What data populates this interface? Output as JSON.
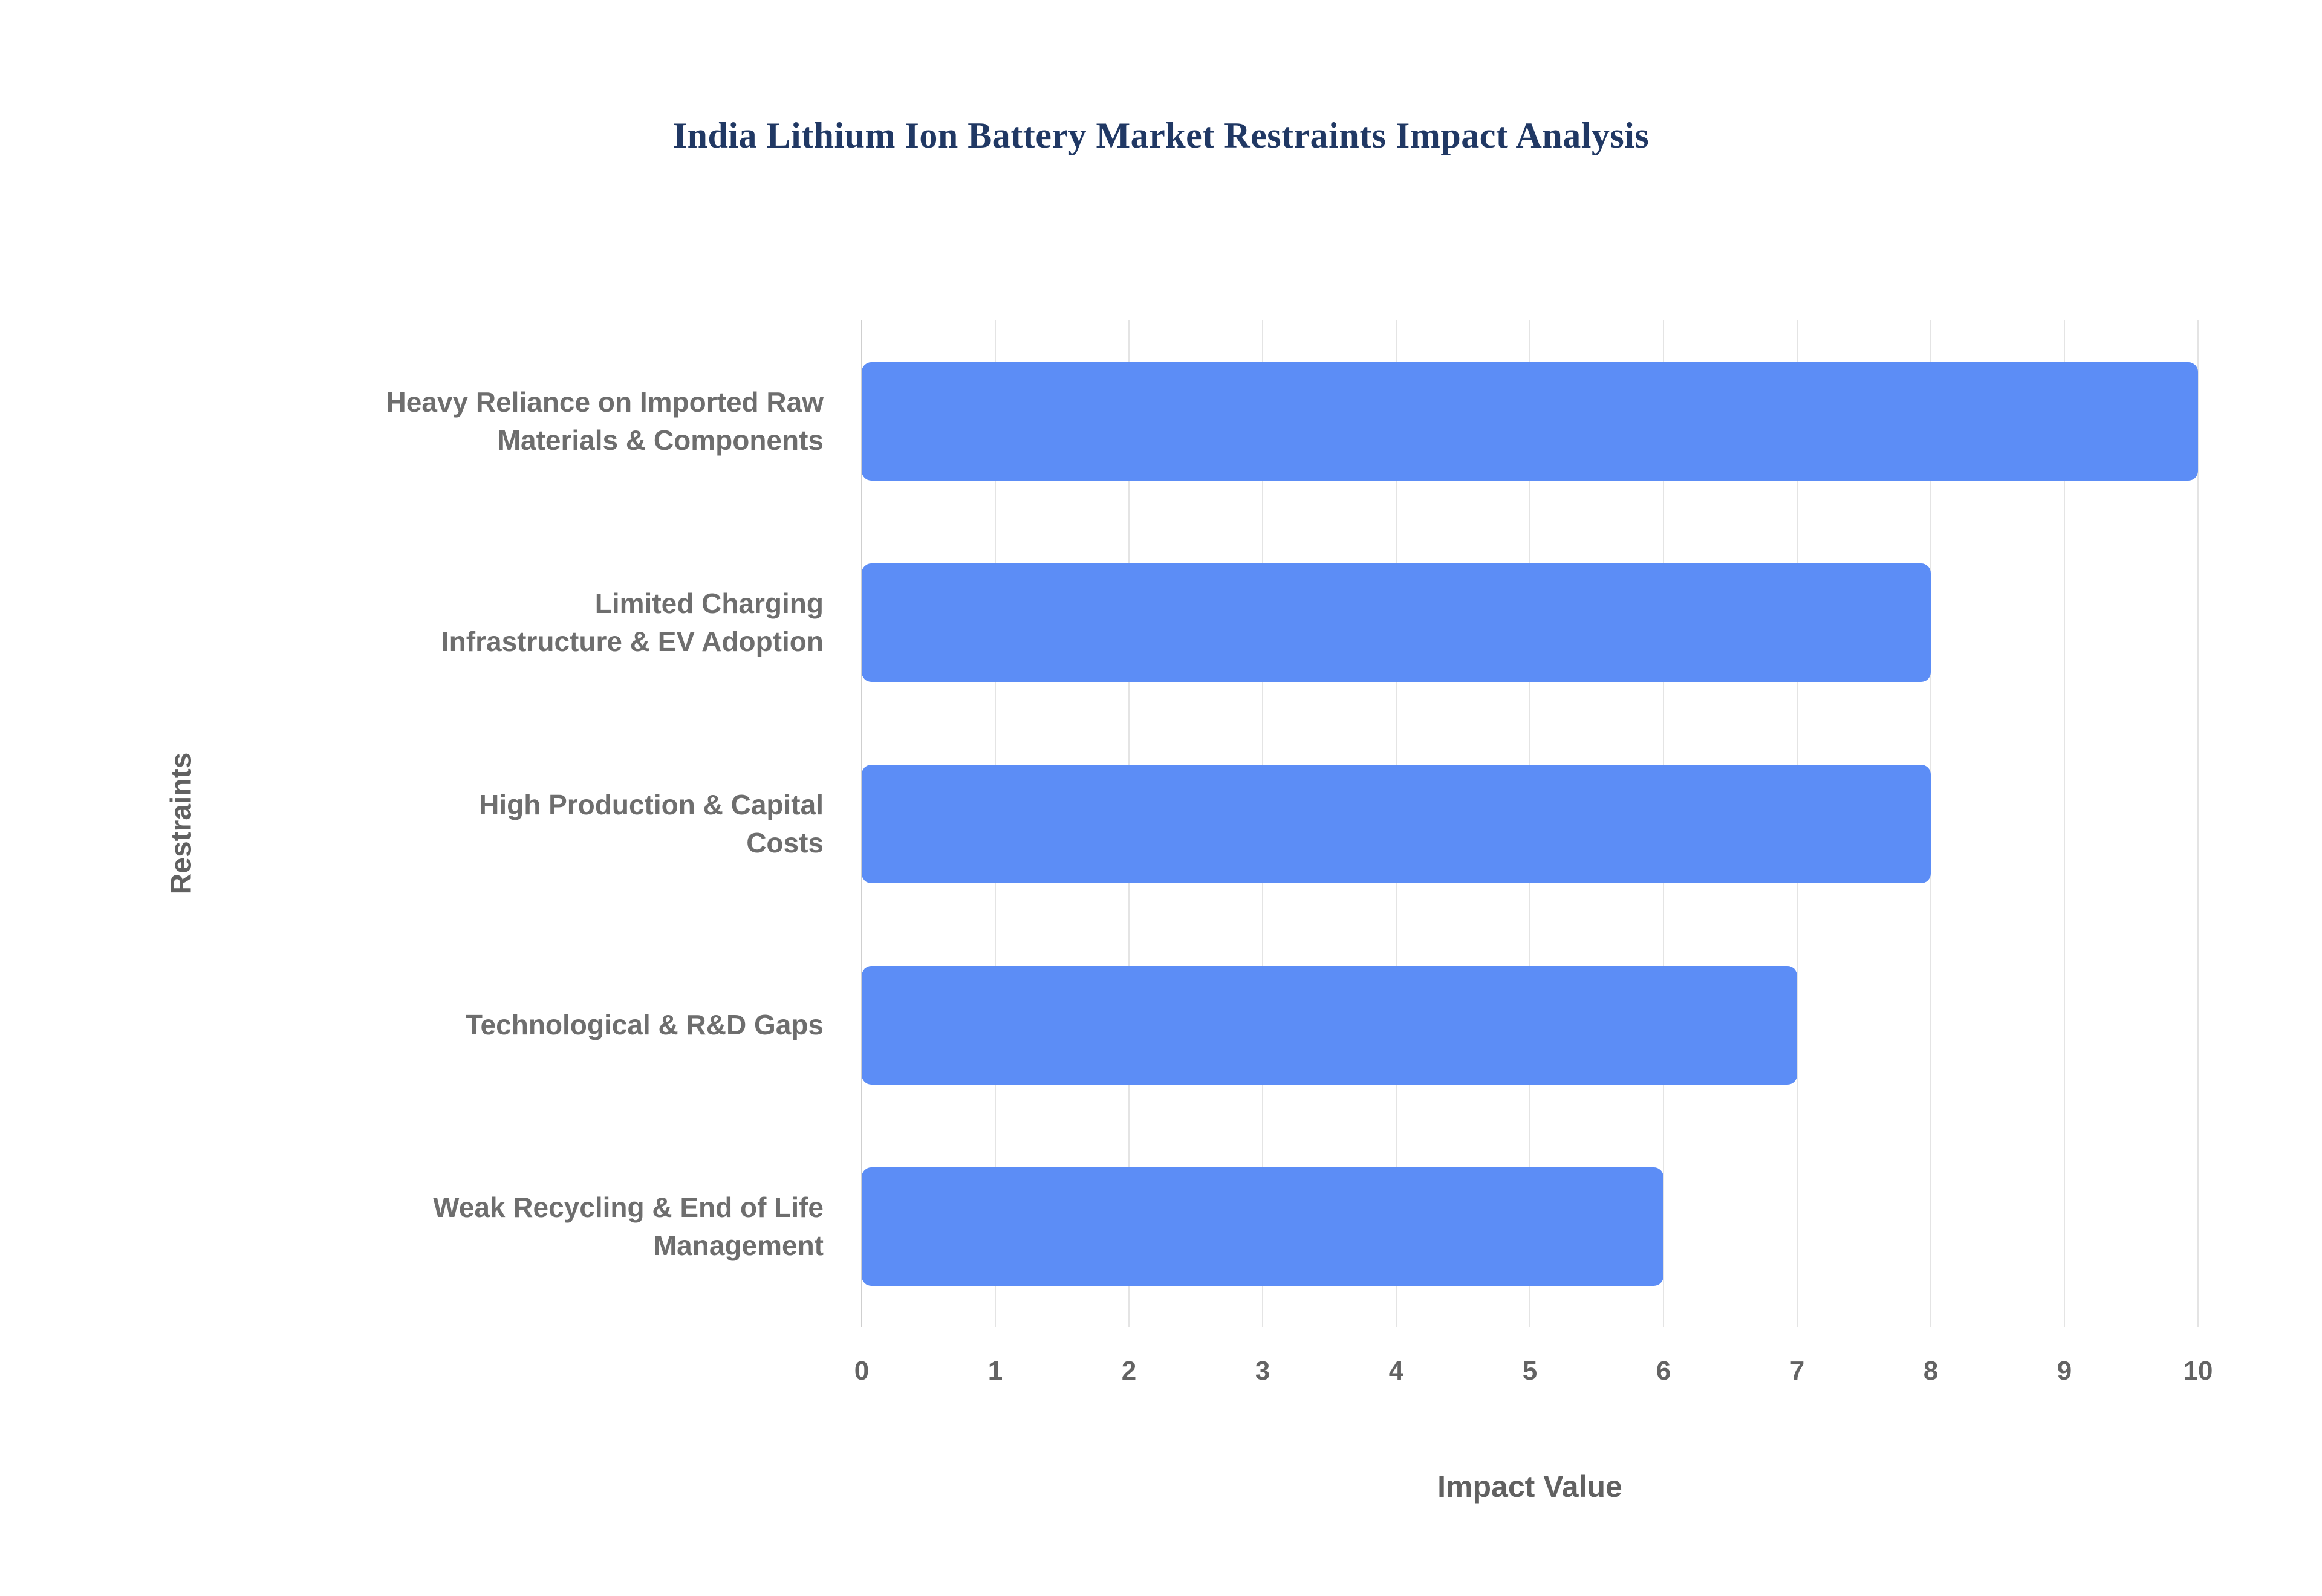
{
  "chart_data": {
    "type": "bar",
    "orientation": "horizontal",
    "title": "India Lithium Ion Battery Market Restraints Impact Analysis",
    "categories": [
      "Heavy Reliance on Imported Raw\nMaterials & Components",
      "Limited Charging\nInfrastructure & EV Adoption",
      "High Production & Capital\nCosts",
      "Technological & R&D Gaps",
      "Weak Recycling & End of Life\nManagement"
    ],
    "values": [
      10,
      8,
      8,
      7,
      6
    ],
    "xlabel": "Impact Value",
    "ylabel": "Restraints",
    "xlim": [
      0,
      10
    ],
    "x_ticks": [
      0,
      1,
      2,
      3,
      4,
      5,
      6,
      7,
      8,
      9,
      10
    ],
    "grid": "vertical",
    "legend": "none",
    "colors": {
      "bar": "#5c8df6",
      "title": "#203864",
      "axis_label": "#616161",
      "tick_label": "#636363",
      "gridline": "#e4e4e4",
      "background": "#ffffff"
    }
  }
}
